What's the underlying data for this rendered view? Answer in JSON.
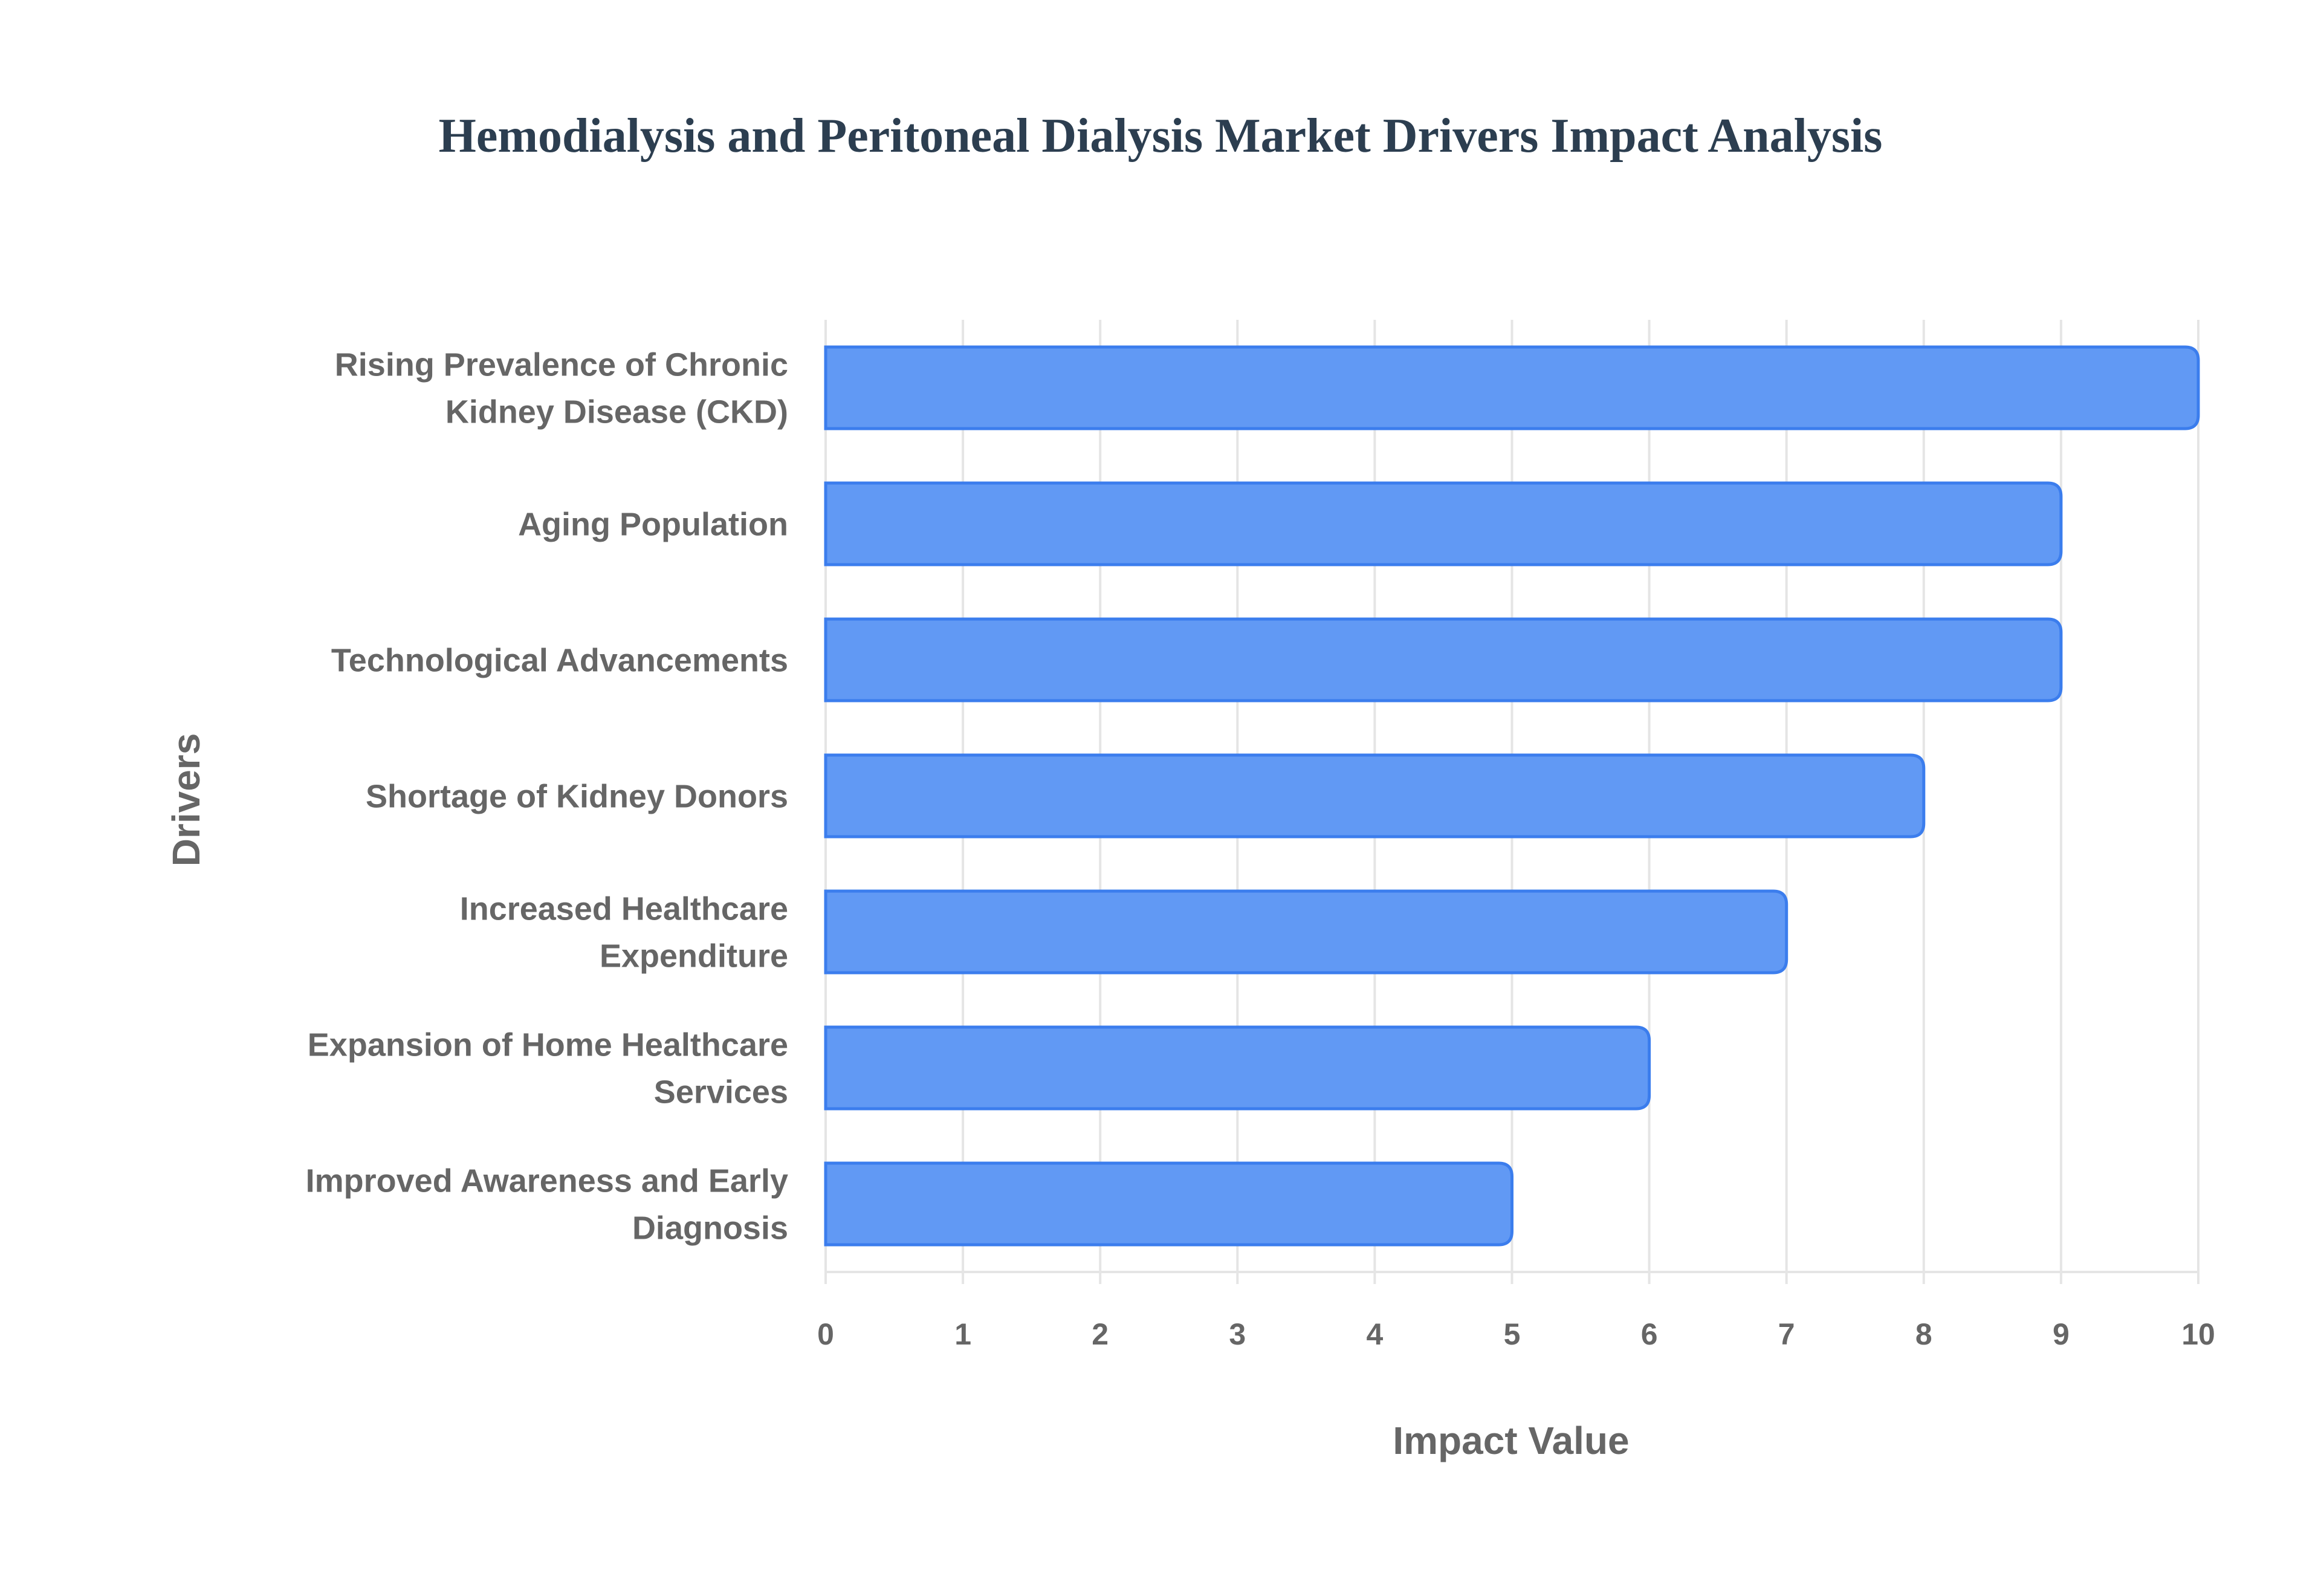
{
  "chart_data": {
    "type": "bar",
    "orientation": "horizontal",
    "title": "Hemodialysis and Peritoneal Dialysis Market Drivers Impact Analysis",
    "xlabel": "Impact Value",
    "ylabel": "Drivers",
    "categories": [
      [
        "Rising Prevalence of Chronic",
        "Kidney Disease (CKD)"
      ],
      [
        "Aging Population"
      ],
      [
        "Technological Advancements"
      ],
      [
        "Shortage of Kidney Donors"
      ],
      [
        "Increased Healthcare",
        "Expenditure"
      ],
      [
        "Expansion of Home Healthcare",
        "Services"
      ],
      [
        "Improved Awareness and Early",
        "Diagnosis"
      ]
    ],
    "values": [
      10,
      9,
      9,
      8,
      7,
      6,
      5
    ],
    "xlim": [
      0,
      10
    ],
    "xticks": [
      "0",
      "1",
      "2",
      "3",
      "4",
      "5",
      "6",
      "7",
      "8",
      "9",
      "10"
    ],
    "grid": true,
    "colors": {
      "bar_fill": "#6199f4",
      "bar_border": "#3b7ded",
      "grid": "#e5e5e5",
      "text": "#666666",
      "title": "#2c3e50"
    }
  }
}
